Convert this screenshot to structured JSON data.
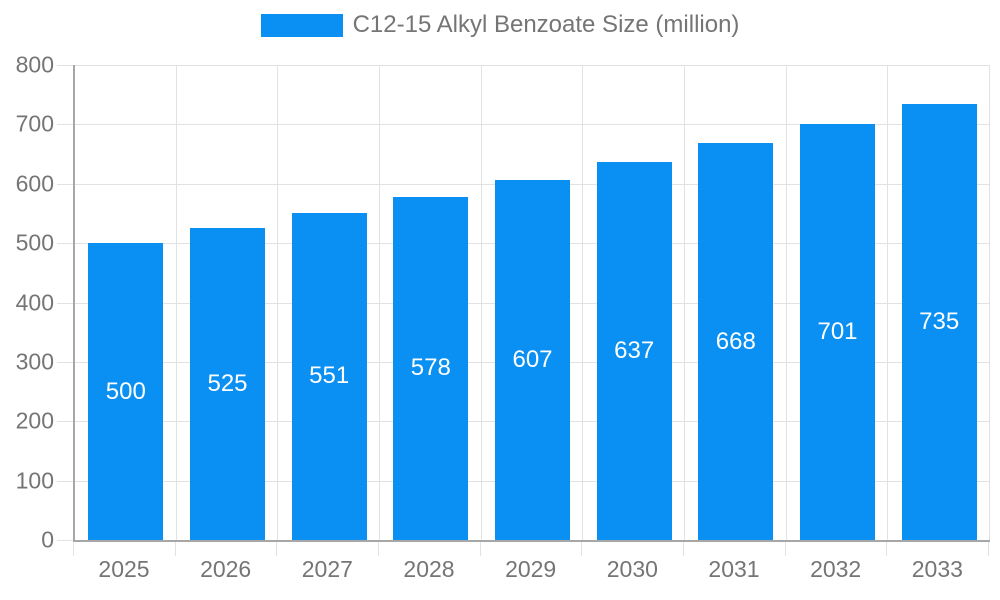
{
  "chart_data": {
    "type": "bar",
    "title": "C12-15 Alkyl Benzoate Size (million)",
    "categories": [
      "2025",
      "2026",
      "2027",
      "2028",
      "2029",
      "2030",
      "2031",
      "2032",
      "2033"
    ],
    "values": [
      500,
      525,
      551,
      578,
      607,
      637,
      668,
      701,
      735
    ],
    "xlabel": "",
    "ylabel": "",
    "ylim": [
      0,
      800
    ],
    "ytick_step": 100,
    "grid": true,
    "legend_position": "top",
    "colors": {
      "bar": "#0a8ff2",
      "bar_value_label": "#ffffff",
      "axis_text": "#757575",
      "grid_line": "#e2e2e2",
      "axis_line": "#a6a6a6",
      "background": "#ffffff"
    }
  }
}
